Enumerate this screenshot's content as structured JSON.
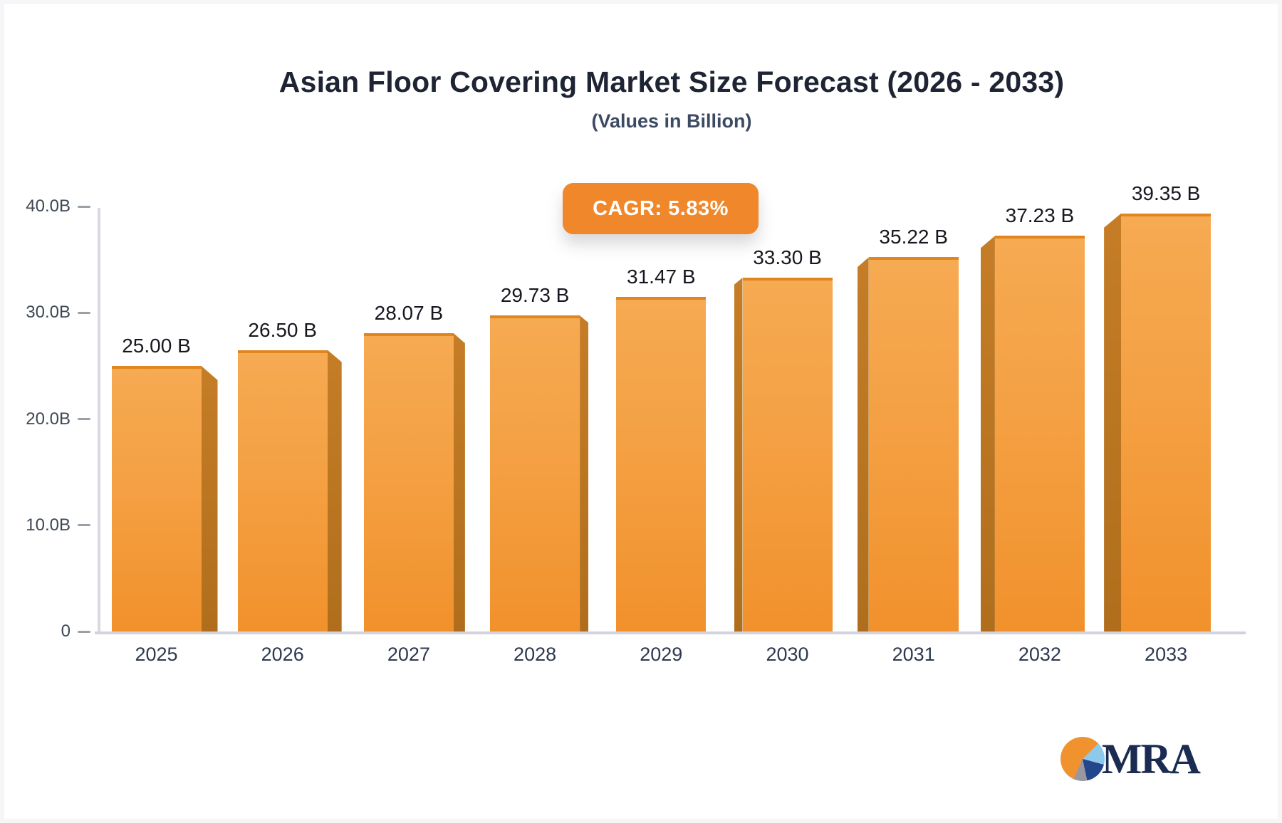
{
  "chart_data": {
    "type": "bar",
    "title": "Asian Floor Covering Market Size Forecast (2026 - 2033)",
    "subtitle": "(Values in Billion)",
    "badge_label": "CAGR: 5.83%",
    "categories": [
      "2025",
      "2026",
      "2027",
      "2028",
      "2029",
      "2030",
      "2031",
      "2032",
      "2033"
    ],
    "values": [
      25.0,
      26.5,
      28.07,
      29.73,
      31.47,
      33.3,
      35.22,
      37.23,
      39.35
    ],
    "value_labels": [
      "25.00 B",
      "26.50 B",
      "28.07 B",
      "29.73 B",
      "31.47 B",
      "33.30 B",
      "35.22 B",
      "37.23 B",
      "39.35 B"
    ],
    "y_axis": {
      "ticks": [
        {
          "value": 40,
          "label": "40.0B"
        },
        {
          "value": 30,
          "label": "30.0B"
        },
        {
          "value": 20,
          "label": "20.0B"
        },
        {
          "value": 10,
          "label": "10.0B"
        },
        {
          "value": 0,
          "label": "0"
        }
      ],
      "min": 0,
      "max": 40
    },
    "xlabel": "",
    "ylabel": "",
    "grid": false,
    "legend": "none",
    "style": "3d-perspective-bars",
    "colors": {
      "bar_face_top": "#f6aa52",
      "bar_face_bottom": "#f1912c",
      "bar_side": "#b97420",
      "bar_top_edge": "#e0851f",
      "badge_background": "#f0882b",
      "badge_text": "#ffffff",
      "title_text": "#1e2433",
      "axis_text": "#3e4754"
    }
  },
  "logo": {
    "text": "MRA",
    "icon": "pie-chart",
    "colors": {
      "orange": "#f0932f",
      "light_blue": "#8ec8ea",
      "navy": "#24468a",
      "gray": "#9b97a0",
      "text": "#1b2b52"
    }
  }
}
